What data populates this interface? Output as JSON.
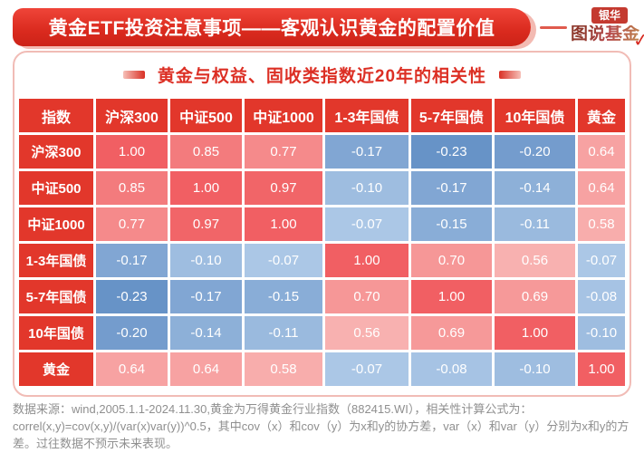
{
  "header": {
    "title": "黄金ETF投资注意事项——客观认识黄金的配置价值",
    "brand": {
      "name": "银华",
      "series": "图说基金"
    }
  },
  "chart_data": {
    "type": "heatmap",
    "title": "黄金与权益、固收类指数近20年的相关性",
    "corner_label": "指数",
    "columns": [
      "沪深300",
      "中证500",
      "中证1000",
      "1-3年国债",
      "5-7年国债",
      "10年国债",
      "黄金"
    ],
    "rows": [
      "沪深300",
      "中证500",
      "中证1000",
      "1-3年国债",
      "5-7年国债",
      "10年国债",
      "黄金"
    ],
    "matrix": [
      [
        1.0,
        0.85,
        0.77,
        -0.17,
        -0.23,
        -0.2,
        0.64
      ],
      [
        0.85,
        1.0,
        0.97,
        -0.1,
        -0.17,
        -0.14,
        0.64
      ],
      [
        0.77,
        0.97,
        1.0,
        -0.07,
        -0.15,
        -0.11,
        0.58
      ],
      [
        -0.17,
        -0.1,
        -0.07,
        1.0,
        0.7,
        0.56,
        -0.07
      ],
      [
        -0.23,
        -0.17,
        -0.15,
        0.7,
        1.0,
        0.69,
        -0.08
      ],
      [
        -0.2,
        -0.14,
        -0.11,
        0.56,
        0.69,
        1.0,
        -0.1
      ],
      [
        0.64,
        0.64,
        0.58,
        -0.07,
        -0.08,
        -0.1,
        1.0
      ]
    ],
    "value_range": [
      -1,
      1
    ],
    "legend_position": "none",
    "grid": false,
    "colors": {
      "header_bg": "#e2372b",
      "header_text": "#ffffff",
      "positive_strong": "#f15f63",
      "positive_weak": "#f9bcba",
      "negative_strong": "#5f8cc3",
      "negative_weak": "#b3cdea"
    }
  },
  "footer": {
    "note": "数据来源：wind,2005.1.1-2024.11.30,黄金为万得黄金行业指数（882415.WI），相关性计算公式为：correl(x,y)=cov(x,y)/(var(x)var(y))^0.5，其中cov（x）和cov（y）为x和y的协方差，var（x）和var（y）分别为x和y的方差。过往数据不预示未来表现。"
  }
}
